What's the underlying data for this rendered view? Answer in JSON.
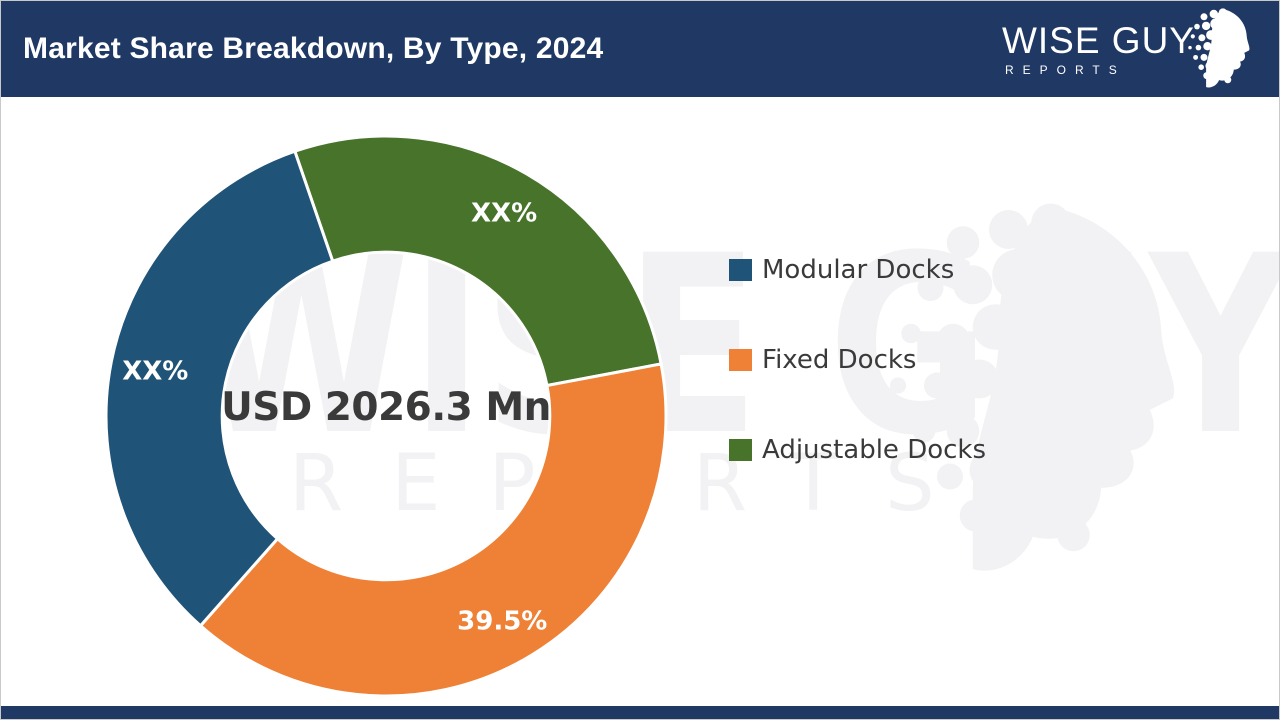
{
  "header": {
    "title": "Market Share Breakdown, By Type, 2024",
    "bg_color": "#1f3864",
    "text_color": "#ffffff",
    "logo": {
      "line1": "WISE GUY",
      "line2": "REPORTS"
    }
  },
  "watermark": {
    "line1": "WISE GUY",
    "line2": "REPORTS",
    "color": "#f2f2f4"
  },
  "footer": {
    "bg_color": "#1f3864"
  },
  "chart_data": {
    "type": "donut",
    "title": "Market Share Breakdown, By Type, 2024",
    "center_label": "USD 2026.3 Mn",
    "start_angle_deg": -19,
    "inner_radius_ratio": 0.585,
    "segments": [
      {
        "name": "Adjustable Docks",
        "value": 27.3,
        "label": "XX%",
        "color": "#47742a"
      },
      {
        "name": "Fixed Docks",
        "value": 39.5,
        "label": "39.5%",
        "color": "#ee8135"
      },
      {
        "name": "Modular Docks",
        "value": 33.2,
        "label": "XX%",
        "color": "#1f5377"
      }
    ],
    "legend": [
      {
        "name": "Modular Docks",
        "color": "#1f5377"
      },
      {
        "name": "Fixed Docks",
        "color": "#ee8135"
      },
      {
        "name": "Adjustable Docks",
        "color": "#47742a"
      }
    ],
    "legend_position": "right",
    "grid": false
  }
}
